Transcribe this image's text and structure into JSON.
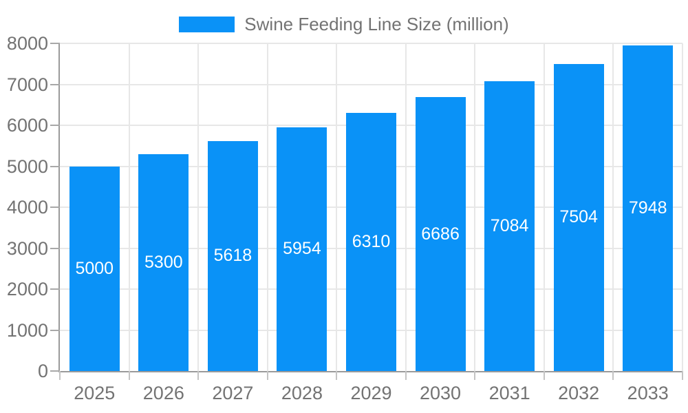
{
  "legend": {
    "label": "Swine Feeding Line Size (million)"
  },
  "chart_data": {
    "type": "bar",
    "title": "Swine Feeding Line Size (million)",
    "categories": [
      "2025",
      "2026",
      "2027",
      "2028",
      "2029",
      "2030",
      "2031",
      "2032",
      "2033"
    ],
    "values": [
      5000,
      5300,
      5618,
      5954,
      6310,
      6686,
      7084,
      7504,
      7948
    ],
    "bar_labels": [
      "5000",
      "5300",
      "5618",
      "5954",
      "6310",
      "6686",
      "7084",
      "7504",
      "7948"
    ],
    "xlabel": "",
    "ylabel": "",
    "ylim": [
      0,
      8000
    ],
    "yticks": [
      0,
      1000,
      2000,
      3000,
      4000,
      5000,
      6000,
      7000,
      8000
    ],
    "grid": true,
    "legend_position": "top-center",
    "colors": {
      "bar": "#0a92f7",
      "bar_label": "#ffffff",
      "axis_text": "#737373",
      "grid_line": "#e7e7e7",
      "axis_line": "#9a9a9a"
    }
  }
}
